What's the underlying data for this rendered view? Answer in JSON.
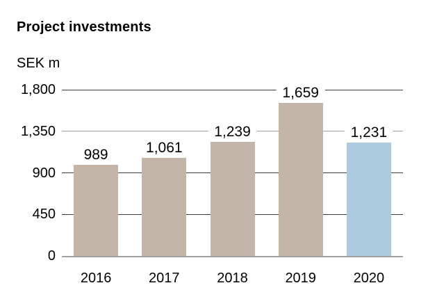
{
  "header": {
    "title": "Project investments",
    "unit": "SEK m"
  },
  "chart_data": {
    "type": "bar",
    "title": "Project investments",
    "ylabel": "SEK m",
    "xlabel": "",
    "categories": [
      "2016",
      "2017",
      "2018",
      "2019",
      "2020"
    ],
    "values": [
      989,
      1061,
      1239,
      1659,
      1231
    ],
    "value_labels": [
      "989",
      "1,061",
      "1,239",
      "1,659",
      "1,231"
    ],
    "ylim": [
      0,
      1800
    ],
    "yticks": [
      {
        "value": 0,
        "label": "0",
        "line": "baseline"
      },
      {
        "value": 450,
        "label": "450",
        "line": "dark"
      },
      {
        "value": 900,
        "label": "900",
        "line": "dark"
      },
      {
        "value": 1350,
        "label": "1,350",
        "line": "light"
      },
      {
        "value": 1800,
        "label": "1,800",
        "line": "dark"
      }
    ],
    "bar_colors": [
      "#c3b5a7",
      "#c3b5a7",
      "#c3b5a7",
      "#c3b5a7",
      "#adcbde"
    ],
    "colors": {
      "bar_default": "#c3b5a7",
      "bar_accent": "#adcbde",
      "grid_dark": "#3c3c3c",
      "grid_light": "#9c9c9c",
      "baseline": "#a2a2a2",
      "text": "#000000",
      "background": "#ffffff"
    },
    "grid": true,
    "legend": false,
    "data_labels": true
  }
}
